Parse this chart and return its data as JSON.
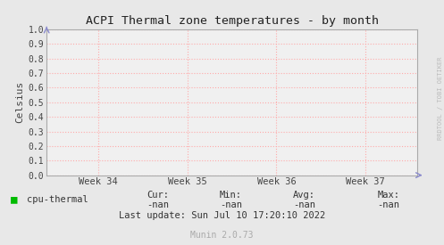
{
  "title": "ACPI Thermal zone temperatures - by month",
  "ylabel": "Celsius",
  "ylim": [
    0.0,
    1.0
  ],
  "yticks": [
    0.0,
    0.1,
    0.2,
    0.3,
    0.4,
    0.5,
    0.6,
    0.7,
    0.8,
    0.9,
    1.0
  ],
  "xtick_labels": [
    "Week 34",
    "Week 35",
    "Week 36",
    "Week 37"
  ],
  "xtick_positions": [
    0.14,
    0.38,
    0.62,
    0.86
  ],
  "background_color": "#e8e8e8",
  "plot_bg_color": "#f0f0f0",
  "grid_color": "#ffaaaa",
  "border_color": "#aaaaaa",
  "title_color": "#222222",
  "axis_color": "#444444",
  "legend_label": "cpu-thermal",
  "legend_color": "#00bb00",
  "cur_label": "Cur:",
  "cur_value": "-nan",
  "min_label": "Min:",
  "min_value": "-nan",
  "avg_label": "Avg:",
  "avg_value": "-nan",
  "max_label": "Max:",
  "max_value": "-nan",
  "last_update": "Last update: Sun Jul 10 17:20:10 2022",
  "watermark": "Munin 2.0.73",
  "rrdtool_text": "RRDTOOL / TOBI OETIKER",
  "arrow_color": "#8888cc",
  "font_family": "DejaVu Sans Mono"
}
